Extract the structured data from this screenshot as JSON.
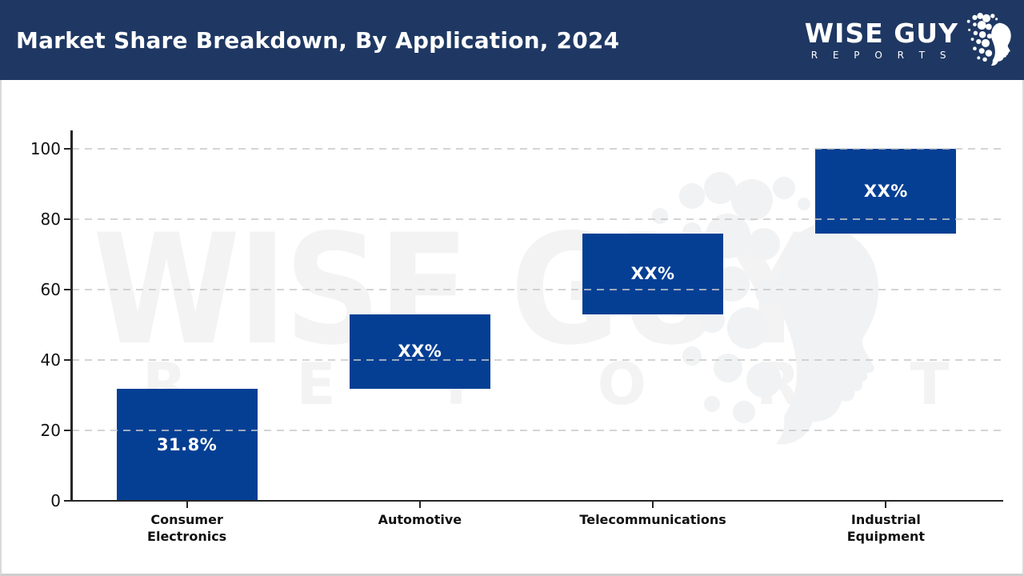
{
  "header": {
    "title": "Market Share Breakdown, By Application, 2024",
    "logo": {
      "brand_top": "WISE GUY",
      "brand_bottom": "R E P O R T S"
    }
  },
  "watermark": {
    "brand_top": "WISE GUY",
    "brand_bottom": "R E P O R T S"
  },
  "chart_data": {
    "type": "bar",
    "subtype": "floating-waterfall",
    "title": "Market Share Breakdown, By Application, 2024",
    "categories": [
      "Consumer\nElectronics",
      "Automotive",
      "Telecommunications",
      "Industrial\nEquipment"
    ],
    "segments": [
      {
        "category": "Consumer Electronics",
        "start": 0,
        "end": 31.8,
        "label": "31.8%"
      },
      {
        "category": "Automotive",
        "start": 31.8,
        "end": 53,
        "label": "XX%"
      },
      {
        "category": "Telecommunications",
        "start": 53,
        "end": 76,
        "label": "XX%"
      },
      {
        "category": "Industrial Equipment",
        "start": 76,
        "end": 100,
        "label": "XX%"
      }
    ],
    "xlabel": "",
    "ylabel": "",
    "ylim": [
      0,
      100
    ],
    "yticks": [
      0,
      20,
      40,
      60,
      80,
      100
    ],
    "grid": "horizontal-dashed",
    "legend": "none",
    "bar_color": "#053f94",
    "bar_label_color": "#ffffff"
  },
  "colors": {
    "header_bg": "#1f3863",
    "bar": "#053f94",
    "axis": "#262626",
    "grid": "#d9d9d9",
    "watermark": "#f3f3f3",
    "page_bg": "#ffffff"
  }
}
